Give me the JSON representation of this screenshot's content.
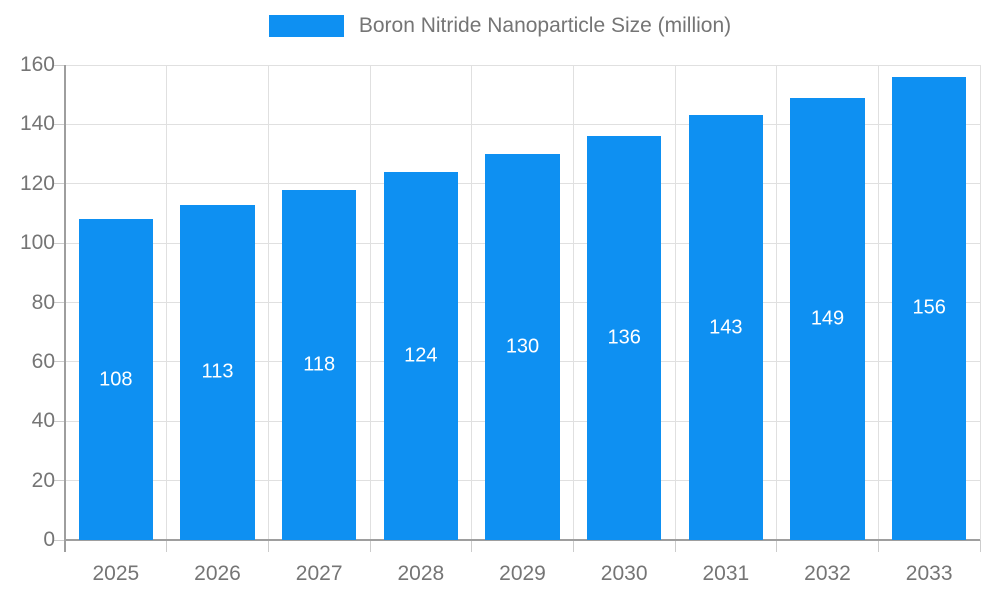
{
  "legend": {
    "label": "Boron Nitride Nanoparticle Size (million)"
  },
  "chart_data": {
    "type": "bar",
    "title": "Boron Nitride Nanoparticle Size (million)",
    "categories": [
      "2025",
      "2026",
      "2027",
      "2028",
      "2029",
      "2030",
      "2031",
      "2032",
      "2033"
    ],
    "values": [
      108,
      113,
      118,
      124,
      130,
      136,
      143,
      149,
      156
    ],
    "xlabel": "",
    "ylabel": "",
    "ylim": [
      0,
      160
    ],
    "ytick_step": 20,
    "yticks": [
      0,
      20,
      40,
      60,
      80,
      100,
      120,
      140,
      160
    ],
    "grid": true,
    "legend_position": "top-center",
    "value_labels": "centered-in-bar",
    "colors": {
      "bar": "#0e90f2",
      "grid": "#e0e0e0",
      "axis": "#9e9e9e",
      "tick": "#cccccc",
      "tick_text": "#757575",
      "value_label": "#ffffff",
      "background": "#ffffff"
    }
  }
}
